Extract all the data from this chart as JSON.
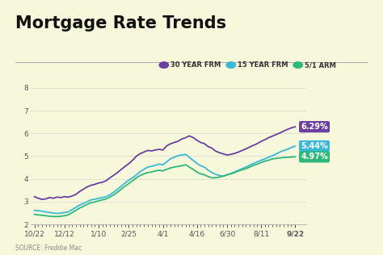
{
  "title": "Mortgage Rate Trends",
  "background_color": "#F7F7DC",
  "source_text": "SOURCE: Freddie Mac",
  "x_labels": [
    "10/22",
    "12/12",
    "1/10",
    "2/25",
    "4/1",
    "4/16",
    "6/30",
    "8/11",
    "9/22"
  ],
  "x_label_bold": "9/22",
  "ylim": [
    2.0,
    8.5
  ],
  "yticks": [
    2,
    3,
    4,
    5,
    6,
    7,
    8
  ],
  "legend": [
    {
      "label": "30 YEAR FRM",
      "color": "#6B3FA0"
    },
    {
      "label": "15 YEAR FRM",
      "color": "#3AB8D8"
    },
    {
      "label": "5/1 ARM",
      "color": "#2DB87A"
    }
  ],
  "end_labels": [
    {
      "text": "6.29%",
      "color": "#6B3FA0",
      "y": 6.29
    },
    {
      "text": "5.44%",
      "color": "#3AB8D8",
      "y": 5.44
    },
    {
      "text": "4.97%",
      "color": "#2DB87A",
      "y": 4.97
    }
  ],
  "series_30yr": [
    3.22,
    3.15,
    3.1,
    3.12,
    3.18,
    3.15,
    3.2,
    3.18,
    3.22,
    3.2,
    3.25,
    3.32,
    3.45,
    3.55,
    3.65,
    3.72,
    3.76,
    3.82,
    3.85,
    3.92,
    4.05,
    4.16,
    4.28,
    4.42,
    4.55,
    4.67,
    4.82,
    5.0,
    5.11,
    5.18,
    5.25,
    5.23,
    5.27,
    5.3,
    5.27,
    5.45,
    5.54,
    5.6,
    5.65,
    5.75,
    5.81,
    5.89,
    5.82,
    5.7,
    5.6,
    5.55,
    5.42,
    5.35,
    5.22,
    5.15,
    5.1,
    5.05,
    5.08,
    5.12,
    5.18,
    5.25,
    5.32,
    5.4,
    5.48,
    5.55,
    5.65,
    5.72,
    5.81,
    5.88,
    5.95,
    6.02,
    6.1,
    6.18,
    6.24,
    6.29
  ],
  "series_15yr": [
    2.62,
    2.6,
    2.58,
    2.55,
    2.52,
    2.5,
    2.48,
    2.5,
    2.52,
    2.55,
    2.65,
    2.75,
    2.85,
    2.92,
    3.0,
    3.08,
    3.1,
    3.15,
    3.18,
    3.22,
    3.3,
    3.42,
    3.55,
    3.68,
    3.82,
    3.95,
    4.05,
    4.18,
    4.32,
    4.42,
    4.52,
    4.55,
    4.6,
    4.65,
    4.62,
    4.75,
    4.88,
    4.95,
    5.02,
    5.05,
    5.08,
    4.95,
    4.82,
    4.68,
    4.58,
    4.52,
    4.38,
    4.28,
    4.2,
    4.15,
    4.12,
    4.18,
    4.24,
    4.3,
    4.38,
    4.45,
    4.52,
    4.6,
    4.68,
    4.75,
    4.82,
    4.88,
    4.95,
    5.02,
    5.1,
    5.18,
    5.25,
    5.3,
    5.38,
    5.44
  ],
  "series_arm": [
    2.44,
    2.42,
    2.4,
    2.38,
    2.36,
    2.35,
    2.34,
    2.36,
    2.38,
    2.42,
    2.52,
    2.62,
    2.72,
    2.8,
    2.88,
    2.96,
    2.98,
    3.04,
    3.08,
    3.12,
    3.2,
    3.3,
    3.42,
    3.55,
    3.68,
    3.8,
    3.92,
    4.05,
    4.15,
    4.22,
    4.28,
    4.3,
    4.35,
    4.38,
    4.35,
    4.42,
    4.48,
    4.52,
    4.55,
    4.58,
    4.62,
    4.52,
    4.42,
    4.3,
    4.22,
    4.18,
    4.1,
    4.05,
    4.05,
    4.08,
    4.12,
    4.18,
    4.22,
    4.28,
    4.35,
    4.4,
    4.45,
    4.52,
    4.6,
    4.65,
    4.72,
    4.78,
    4.82,
    4.88,
    4.9,
    4.92,
    4.94,
    4.95,
    4.96,
    4.97
  ],
  "title_fontsize": 15,
  "axis_fontsize": 6.5,
  "legend_fontsize": 6
}
